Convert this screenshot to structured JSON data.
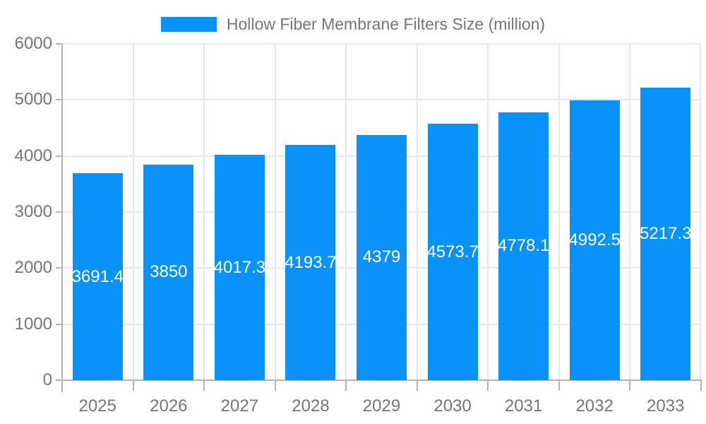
{
  "chart_data": {
    "type": "bar",
    "title": "Hollow Fiber Membrane Filters Size (million)",
    "categories": [
      "2025",
      "2026",
      "2027",
      "2028",
      "2029",
      "2030",
      "2031",
      "2032",
      "2033"
    ],
    "values": [
      3691.4,
      3850,
      4017.3,
      4193.7,
      4379,
      4573.7,
      4778.1,
      4992.5,
      5217.3
    ],
    "value_labels": [
      "3691.4",
      "3850",
      "4017.3",
      "4193.7",
      "4379",
      "4573.7",
      "4778.1",
      "4992.5",
      "5217.3"
    ],
    "xlabel": "",
    "ylabel": "",
    "ylim": [
      0,
      6000
    ],
    "y_ticks": [
      0,
      1000,
      2000,
      3000,
      4000,
      5000,
      6000
    ],
    "grid": true,
    "legend_position": "top",
    "colors": {
      "bar": "#0892fa",
      "grid": "#e6e6e6",
      "axis": "#b3b3b3",
      "tick_text": "#757575",
      "legend_text": "#757575",
      "value_label": "#ffffff",
      "background": "#ffffff"
    }
  }
}
